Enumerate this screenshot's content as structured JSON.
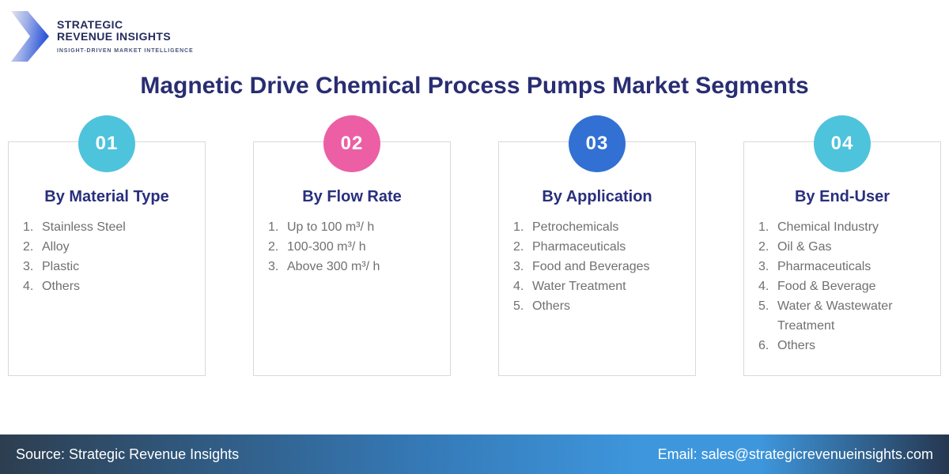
{
  "logo": {
    "name_line1": "STRATEGIC",
    "name_line2": "REVENUE INSIGHTS",
    "tagline": "INSIGHT-DRIVEN MARKET INTELLIGENCE"
  },
  "title": "Magnetic Drive Chemical Process Pumps Market Segments",
  "segments": [
    {
      "number": "01",
      "badge_color": "#4ec3dc",
      "heading": "By Material Type",
      "items": [
        "Stainless Steel",
        "Alloy",
        "Plastic",
        "Others"
      ]
    },
    {
      "number": "02",
      "badge_color": "#ec5fa4",
      "heading": "By Flow Rate",
      "items": [
        "Up to 100 m³/ h",
        "100-300 m³/ h",
        "Above 300 m³/ h"
      ]
    },
    {
      "number": "03",
      "badge_color": "#3271d3",
      "heading": "By Application",
      "items": [
        "Petrochemicals",
        "Pharmaceuticals",
        "Food and Beverages",
        "Water Treatment",
        "Others"
      ]
    },
    {
      "number": "04",
      "badge_color": "#4ec3dc",
      "heading": "By End-User",
      "items": [
        "Chemical Industry",
        "Oil & Gas",
        "Pharmaceuticals",
        "Food & Beverage",
        "Water & Wastewater Treatment",
        "Others"
      ]
    }
  ],
  "footer": {
    "source": "Source: Strategic Revenue Insights",
    "email": "Email: sales@strategicrevenueinsights.com"
  },
  "colors": {
    "title_text": "#292d72",
    "heading_text": "#292f7c",
    "list_text": "#707070",
    "badge_cyan": "#4ec3dc",
    "badge_pink": "#ec5fa4",
    "badge_blue": "#3271d3",
    "footer_dark": "#2d3e50",
    "footer_blue": "#3e97dd"
  }
}
